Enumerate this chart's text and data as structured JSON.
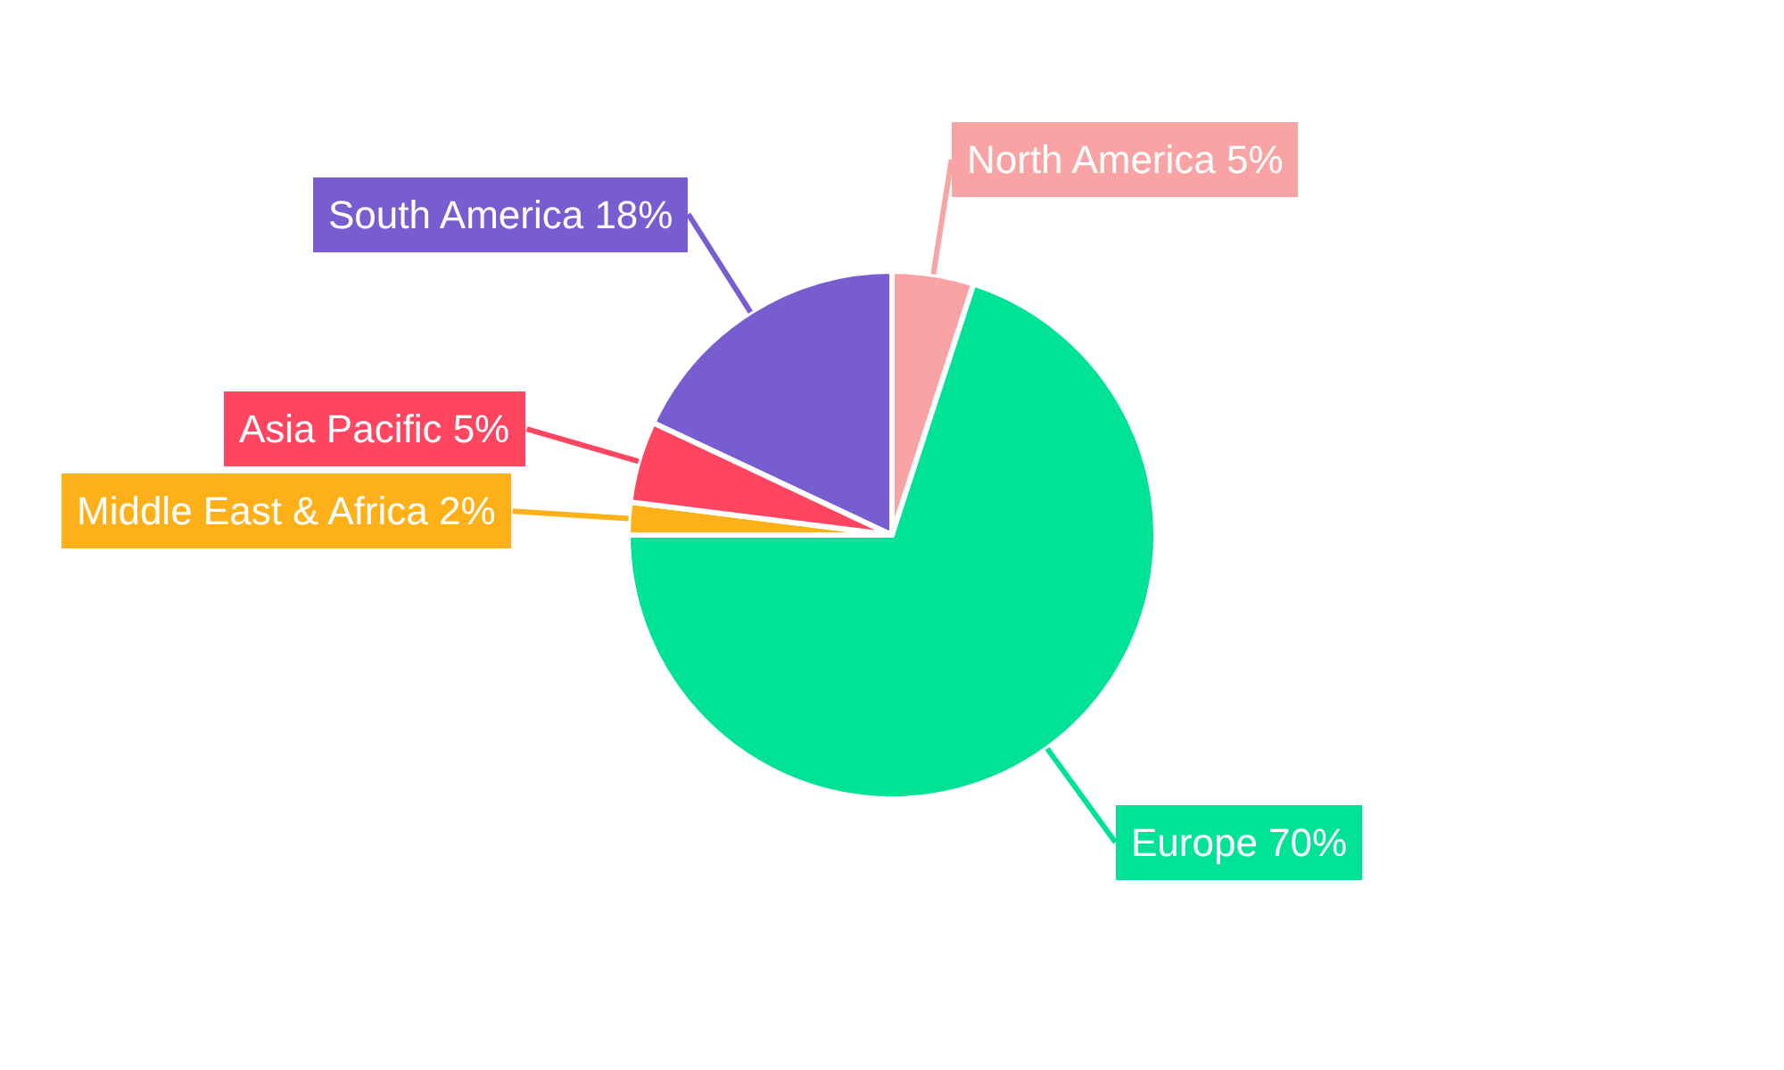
{
  "chart_data": {
    "type": "pie",
    "categories": [
      "North America",
      "Europe",
      "Middle East & Africa",
      "Asia Pacific",
      "South America"
    ],
    "values": [
      5,
      70,
      2,
      5,
      18
    ],
    "value_labels": [
      "5%",
      "70%",
      "2%",
      "5%",
      "18%"
    ],
    "colors": [
      "#f9a3a4",
      "#00e396",
      "#feb019",
      "#ff4560",
      "#775dd0"
    ],
    "legend": false
  }
}
